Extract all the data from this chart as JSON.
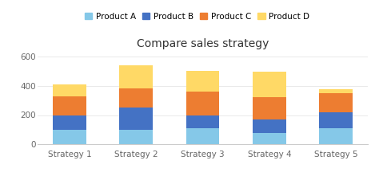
{
  "title": "Compare sales strategy",
  "categories": [
    "Strategy 1",
    "Strategy 2",
    "Strategy 3",
    "Strategy 4",
    "Strategy 5"
  ],
  "products": [
    "Product A",
    "Product B",
    "Product C",
    "Product D"
  ],
  "values": {
    "Product A": [
      100,
      100,
      110,
      80,
      110
    ],
    "Product B": [
      100,
      150,
      90,
      90,
      110
    ],
    "Product C": [
      130,
      130,
      160,
      150,
      130
    ],
    "Product D": [
      80,
      160,
      145,
      175,
      25
    ]
  },
  "colors": {
    "Product A": "#85C8E8",
    "Product B": "#4472C4",
    "Product C": "#ED7D31",
    "Product D": "#FFD966"
  },
  "ylim": [
    0,
    650
  ],
  "yticks": [
    0,
    200,
    400,
    600
  ],
  "background_color": "#FFFFFF",
  "plot_bg_color": "#FFFFFF",
  "bar_width": 0.5,
  "title_fontsize": 10,
  "legend_fontsize": 7.5,
  "tick_fontsize": 7.5
}
